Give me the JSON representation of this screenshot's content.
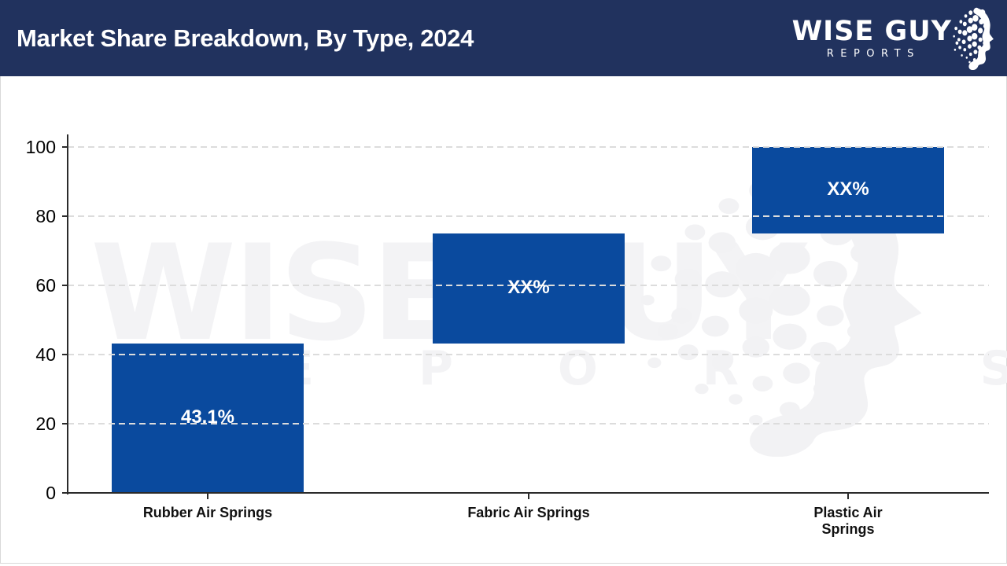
{
  "header": {
    "title": "Market Share Breakdown, By Type, 2024",
    "logo": {
      "line1": "WISE GUY",
      "line2": "REPORTS"
    }
  },
  "watermark": {
    "line1": "WISE GUY",
    "line2": "R E P O R T S"
  },
  "chart_data": {
    "type": "bar",
    "subtype": "stacked-percentage-waterfall",
    "title": "Market Share Breakdown, By Type, 2024",
    "categories": [
      "Rubber Air Springs",
      "Fabric Air Springs",
      "Plastic Air\nSprings"
    ],
    "bars": [
      {
        "category": "Rubber Air Springs",
        "label": "43.1%",
        "start": 0,
        "end": 43.1
      },
      {
        "category": "Fabric Air Springs",
        "label": "XX%",
        "start": 43.1,
        "end": 75
      },
      {
        "category": "Plastic Air Springs",
        "label": "XX%",
        "start": 75,
        "end": 100
      }
    ],
    "y_ticks": [
      0,
      20,
      40,
      60,
      80,
      100
    ],
    "ylim": [
      0,
      100
    ],
    "xlabel": "",
    "ylabel": "",
    "grid": "horizontal-dashed",
    "legend": "none",
    "bar_color": "#0a4a9e",
    "bar_label_color": "#ffffff"
  },
  "colors": {
    "header_bg": "#21325e",
    "bar": "#0a4a9e",
    "grid": "#dcdcdc",
    "axis": "#2b2b2b",
    "watermark": "#f3f3f5",
    "panel_border": "#d9d9d9"
  }
}
